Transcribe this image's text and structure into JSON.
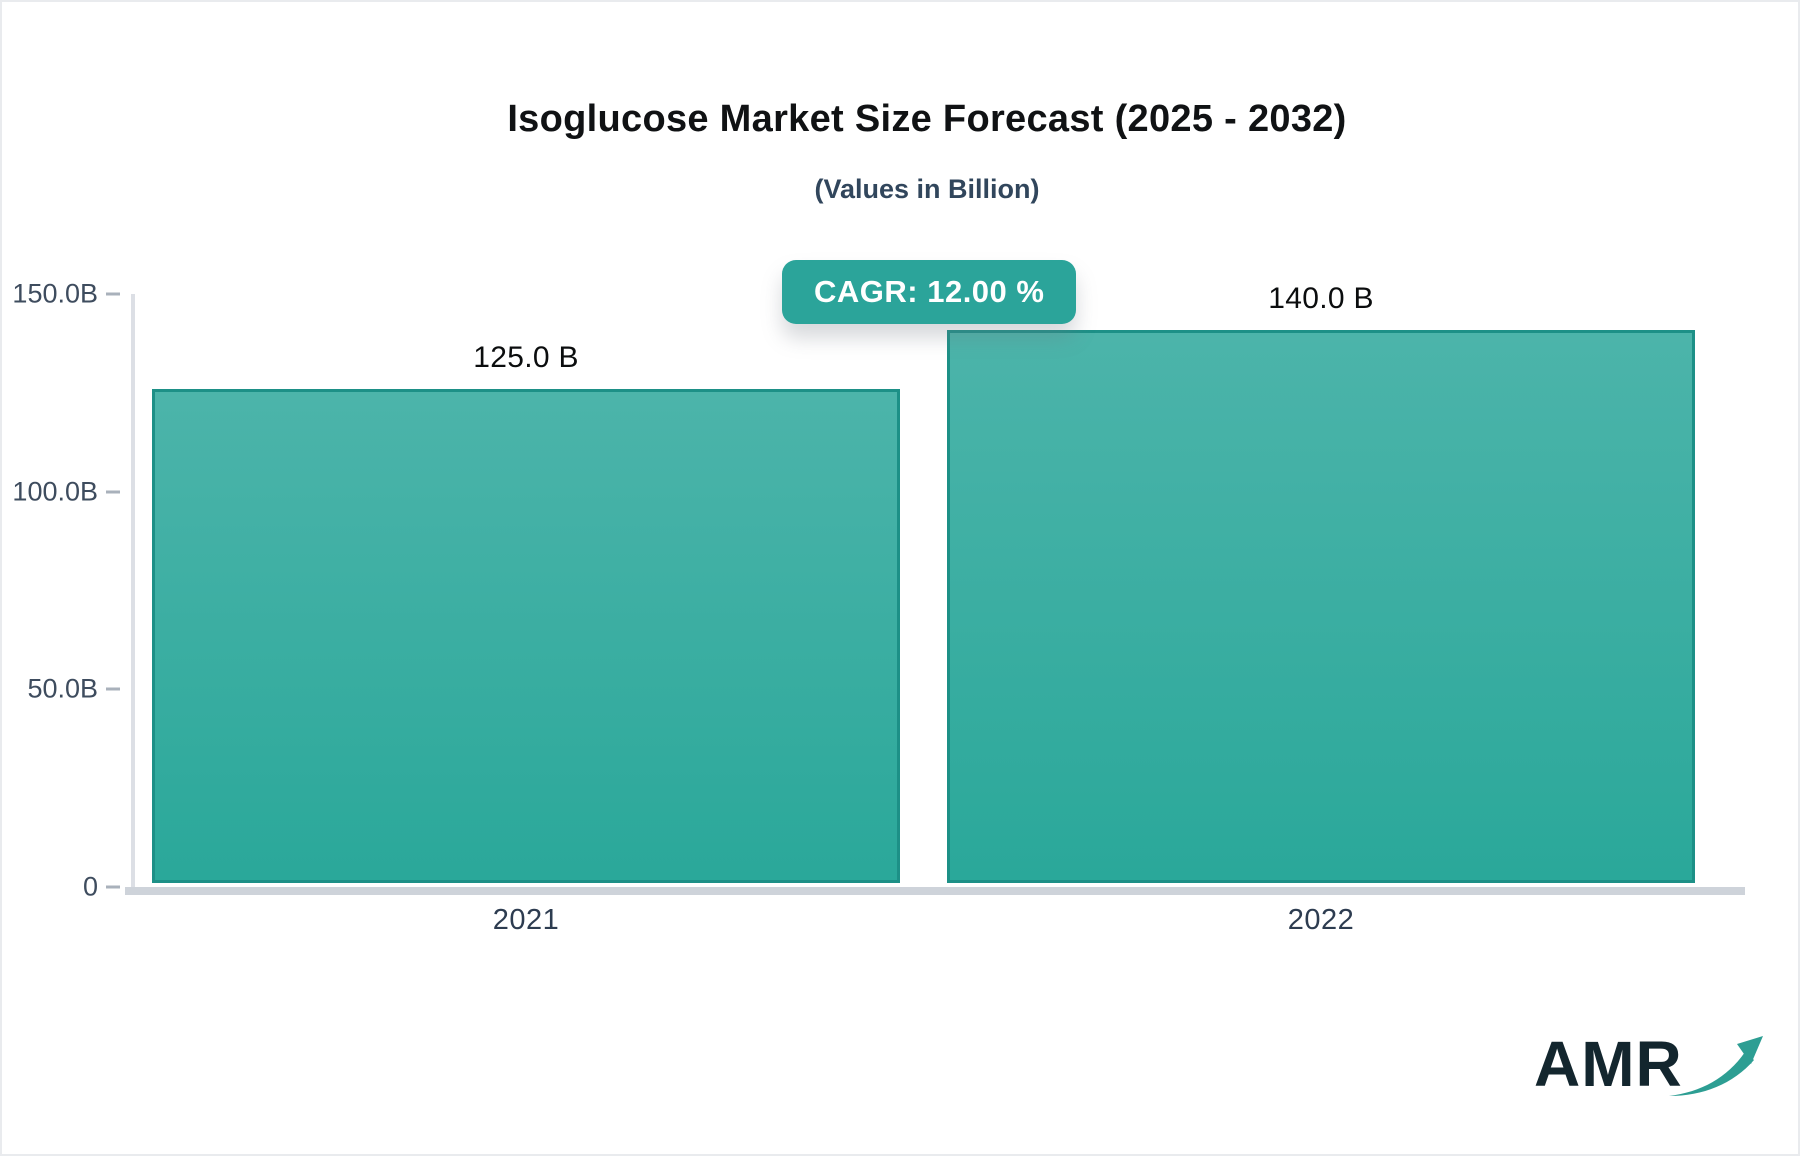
{
  "header": {
    "title": "Isoglucose Market Size Forecast (2025 - 2032)",
    "subtitle": "(Values in Billion)"
  },
  "chart_data": {
    "type": "bar",
    "title": "Isoglucose Market Size Forecast (2025 - 2032)",
    "subtitle": "(Values in Billion)",
    "cagr_label": "CAGR: 12.00 %",
    "categories": [
      "2021",
      "2022"
    ],
    "values": [
      125.0,
      140.0
    ],
    "value_labels": [
      "125.0 B",
      "140.0 B"
    ],
    "unit": "Billion",
    "xlabel": "",
    "ylabel": "",
    "ylim": [
      0,
      150
    ],
    "yticks": [
      {
        "value": 150,
        "label": "150.0B"
      },
      {
        "value": 100,
        "label": "100.0B"
      },
      {
        "value": 50,
        "label": "50.0B"
      },
      {
        "value": 0,
        "label": "0"
      }
    ],
    "grid": false,
    "legend_position": "none",
    "colors": {
      "bar_gradient_top": "#4cb4aa",
      "bar_gradient_bottom": "#2aa89a",
      "bar_border": "#1d9087",
      "badge_background": "#2ba49a",
      "badge_text": "#ffffff",
      "axis_line": "#ced3da",
      "tick_text": "#3e4c5e",
      "title_text": "#101214",
      "subtitle_text": "#31465c"
    }
  },
  "logo": {
    "text": "AMR",
    "arrow_icon": "trend-arrow-icon",
    "text_color": "#13262e",
    "arrow_color": "#2d9e93"
  }
}
